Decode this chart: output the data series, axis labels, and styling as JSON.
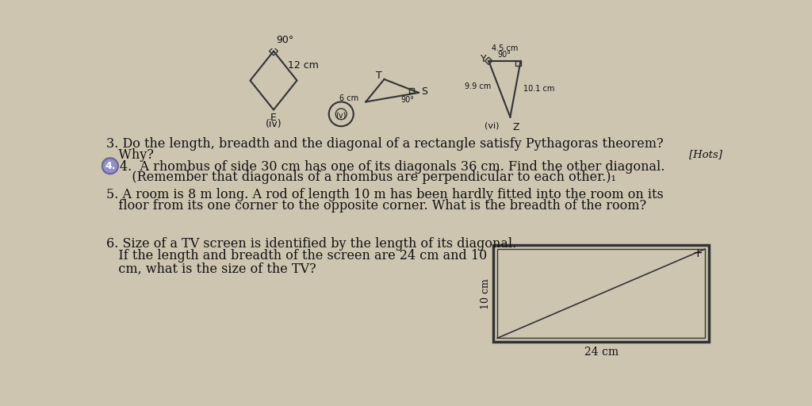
{
  "bg_color": "#cdc5b0",
  "page_color": "#d8d0bc",
  "text_color": "#111111",
  "line_color": "#333333",
  "body_fontsize": 11.5,
  "small_fontsize": 9,
  "q3_line1": "3. Do the length, breadth and the diagonal of a rectangle satisfy Pythagoras theorem?",
  "q3_line2": "   Why?",
  "q3_hint": "[Hots]",
  "q4_line1": "4.  A rhombus of side 30 cm has one of its diagonals 36 cm. Find the other diagonal.",
  "q4_line2": "   (Remember that diagonals of a rhombus are perpendicular to each other.)₁",
  "q5_line1": "5. A room is 8 m long. A rod of length 10 m has been hardly fitted into the room on its",
  "q5_line2": "   floor from its one corner to the opposite corner. What is the breadth of the room?",
  "q6_line1": "6. Size of a TV screen is identified by the length of its diagonal.",
  "q6_line2": "   If the length and breadth of the screen are 24 cm and 10",
  "q6_line3": "   cm, what is the size of the TV?",
  "rhombus_90": "90°",
  "rhombus_12cm": "12 cm",
  "rhombus_E": "E",
  "rhombus_iv": "(iv)",
  "tri1_T": "T",
  "tri1_S": "S",
  "tri1_90": "90°",
  "tri1_6cm": "6 cm",
  "tri1_v": "(v)",
  "tri2_45cm": "4.5 cm",
  "tri2_Y": "Y",
  "tri2_90": "90°",
  "tri2_101cm": "10.1 cm",
  "tri2_99cm": "9.9 cm",
  "tri2_Z": "Z",
  "tri2_vi": "(vi) Z",
  "rect_w": "24 cm",
  "rect_h": "10 cm"
}
